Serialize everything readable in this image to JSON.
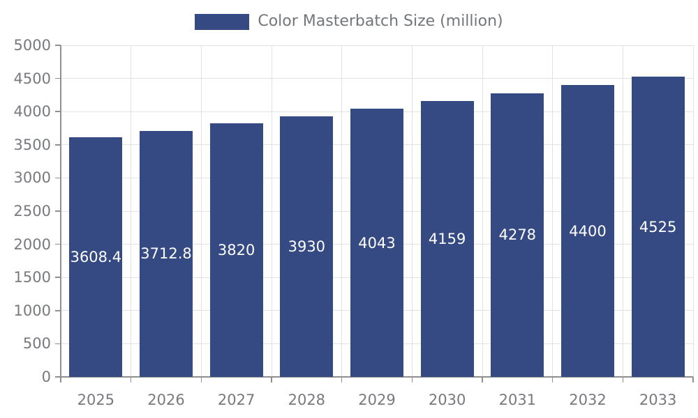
{
  "chart_data": {
    "type": "bar",
    "categories": [
      "2025",
      "2026",
      "2027",
      "2028",
      "2029",
      "2030",
      "2031",
      "2032",
      "2033"
    ],
    "series": [
      {
        "name": "Color Masterbatch Size (million)",
        "values": [
          3608.4,
          3712.8,
          3820,
          3930,
          4043,
          4159,
          4278,
          4400,
          4525
        ]
      }
    ],
    "value_labels": [
      "3608.4",
      "3712.8",
      "3820",
      "3930",
      "4043",
      "4159",
      "4278",
      "4400",
      "4525"
    ],
    "xlabel": "",
    "ylabel": "",
    "ylim": [
      0,
      5000
    ],
    "ytick_interval": 500,
    "yticks": [
      "0",
      "500",
      "1000",
      "1500",
      "2000",
      "2500",
      "3000",
      "3500",
      "4000",
      "4500",
      "5000"
    ],
    "grid": true,
    "legend_position": "top",
    "colors": {
      "bar": "#354a82",
      "value_label": "#ffffff",
      "grid_line": "#e2e2e2",
      "axis_line": "#8f8f8f",
      "tick_label": "#77797e",
      "legend_text": "#73767a"
    }
  }
}
